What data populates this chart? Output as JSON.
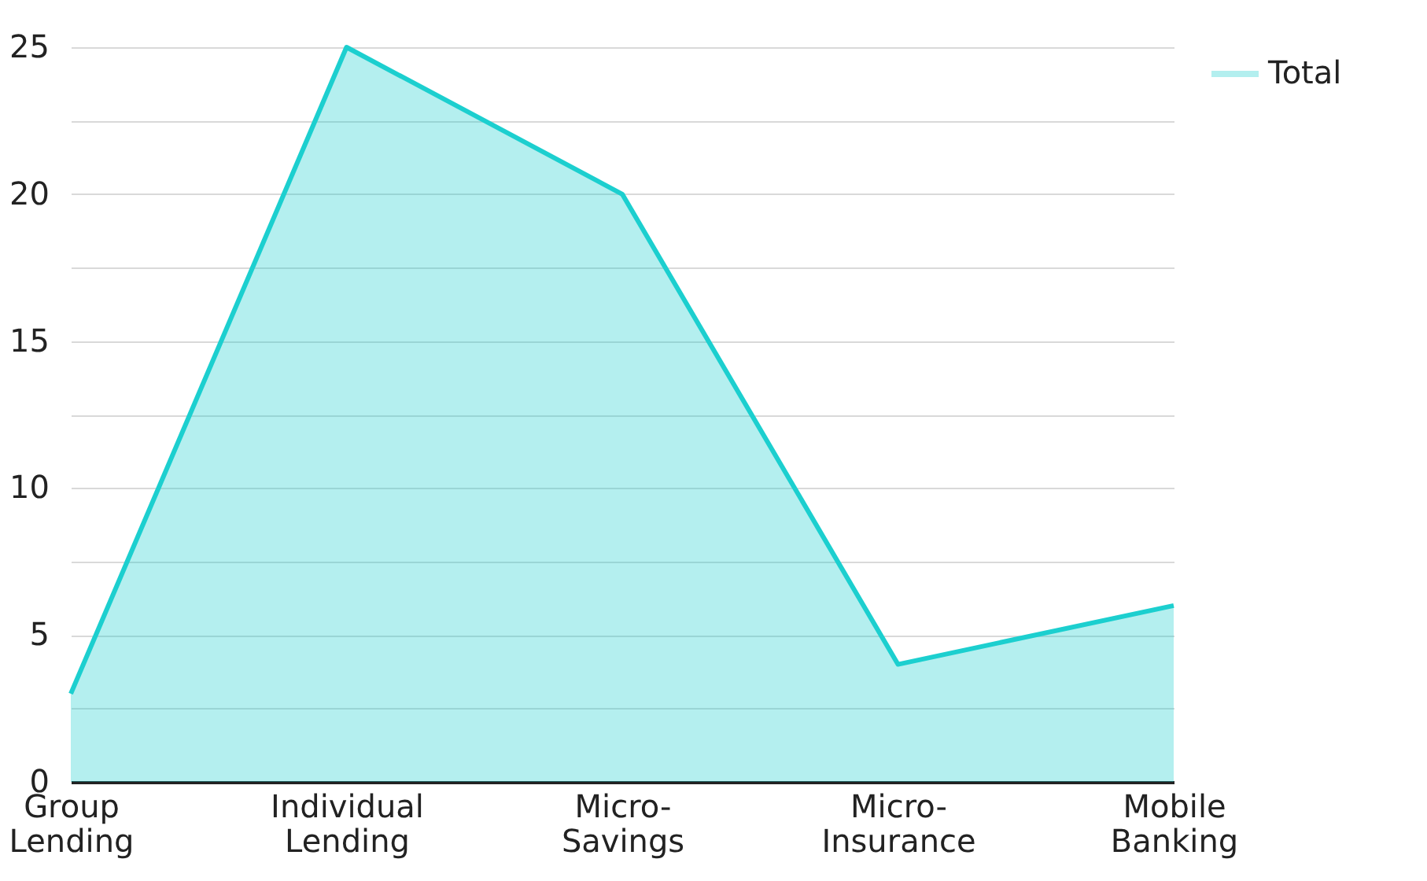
{
  "chart_data": {
    "type": "area",
    "categories": [
      "Group Lending",
      "Individual Lending",
      "Micro-Savings",
      "Micro-Insurance",
      "Mobile Banking"
    ],
    "series": [
      {
        "name": "Total",
        "color": "#1ccfcf",
        "values": [
          3,
          25,
          20,
          4,
          6
        ]
      }
    ],
    "ylim": [
      0,
      25
    ],
    "yticks": [
      0,
      {
        "value": 2.5,
        "label": null
      },
      5,
      {
        "value": 7.5,
        "label": null
      },
      10,
      {
        "value": 12.5,
        "label": null
      },
      15,
      {
        "value": 17.5,
        "label": null
      },
      20,
      {
        "value": 22.5,
        "label": null
      },
      25
    ],
    "grid": "y",
    "legend": "top right"
  }
}
